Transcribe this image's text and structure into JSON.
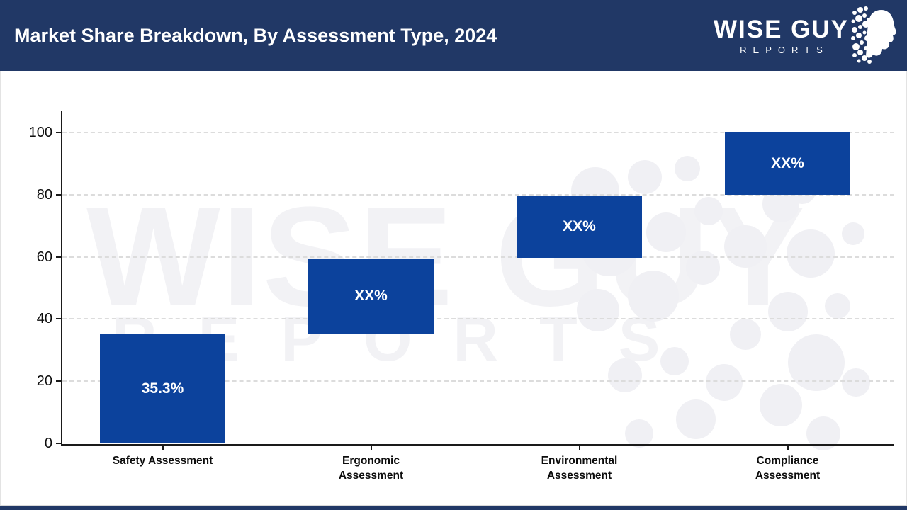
{
  "header": {
    "title": "Market Share Breakdown, By Assessment Type, 2024",
    "logo": {
      "line1": "WISE GUY",
      "line2": "REPORTS"
    }
  },
  "watermark": {
    "line1": "WISE GUY",
    "line2": "REPORTS"
  },
  "colors": {
    "header_bg": "#213866",
    "footer_bg": "#213866",
    "bar_fill": "#0c429c",
    "bar_label": "#ffffff",
    "grid_line": "#dcdcdc",
    "axis_line": "#1a1a1a",
    "watermark": "#f2f2f5"
  },
  "chart_data": {
    "type": "bar",
    "subtype": "floating-waterfall",
    "title": "Market Share Breakdown, By Assessment Type, 2024",
    "xlabel": "",
    "ylabel": "",
    "ylim": [
      0,
      100
    ],
    "yticks": [
      0,
      20,
      40,
      60,
      80,
      100
    ],
    "grid": "horizontal-dashed",
    "legend": "none",
    "categories": [
      "Safety Assessment",
      "Ergonomic Assessment",
      "Environmental Assessment",
      "Compliance Assessment"
    ],
    "bars": [
      {
        "category": "Safety Assessment",
        "label_lines": "Safety Assessment",
        "start": 0,
        "end": 35.3,
        "value_label": "35.3%"
      },
      {
        "category": "Ergonomic Assessment",
        "label_lines": "Ergonomic\nAssessment",
        "start": 35.3,
        "end": 59.5,
        "value_label": "XX%"
      },
      {
        "category": "Environmental Assessment",
        "label_lines": "Environmental\nAssessment",
        "start": 59.6,
        "end": 79.8,
        "value_label": "XX%"
      },
      {
        "category": "Compliance Assessment",
        "label_lines": "Compliance\nAssessment",
        "start": 79.9,
        "end": 100,
        "value_label": "XX%"
      }
    ]
  }
}
